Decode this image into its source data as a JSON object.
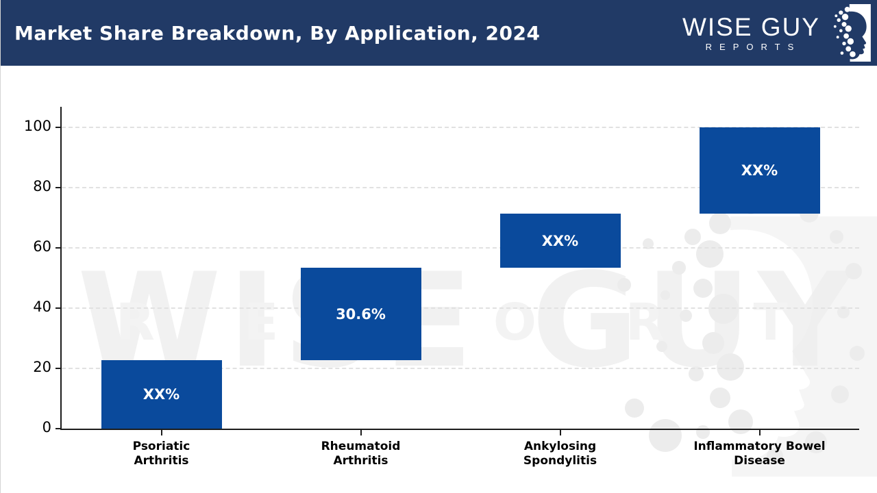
{
  "header": {
    "title": "Market Share Breakdown, By Application, 2024",
    "bg_color": "#213a66",
    "logo": {
      "line1": "WISE GUY",
      "line2": "REPORTS"
    }
  },
  "watermark": {
    "line1": "WISE GUY",
    "line2": "R E P O R T S"
  },
  "chart_data": {
    "type": "bar",
    "subtype": "waterfall",
    "title": "Market Share Breakdown, By Application, 2024",
    "xlabel": "",
    "ylabel": "",
    "ylim": [
      0,
      100
    ],
    "yticks": [
      0,
      20,
      40,
      60,
      80,
      100
    ],
    "grid": "horizontal-dashed",
    "legend": "none",
    "bar_color": "#0a4a9c",
    "label_color": "#ffffff",
    "categories": [
      [
        "Psoriatic",
        "Arthritis"
      ],
      [
        "Rheumatoid",
        "Arthritis"
      ],
      [
        "Ankylosing",
        "Spondylitis"
      ],
      [
        "Inflammatory Bowel",
        "Disease"
      ]
    ],
    "bars": [
      {
        "category": "Psoriatic Arthritis",
        "start": 0,
        "end": 22.7,
        "value_label": "XX%"
      },
      {
        "category": "Rheumatoid Arthritis",
        "start": 22.7,
        "end": 53.3,
        "value_label": "30.6%"
      },
      {
        "category": "Ankylosing Spondylitis",
        "start": 53.3,
        "end": 71.4,
        "value_label": "XX%"
      },
      {
        "category": "Inflammatory Bowel Disease",
        "start": 71.4,
        "end": 100,
        "value_label": "XX%"
      }
    ]
  }
}
